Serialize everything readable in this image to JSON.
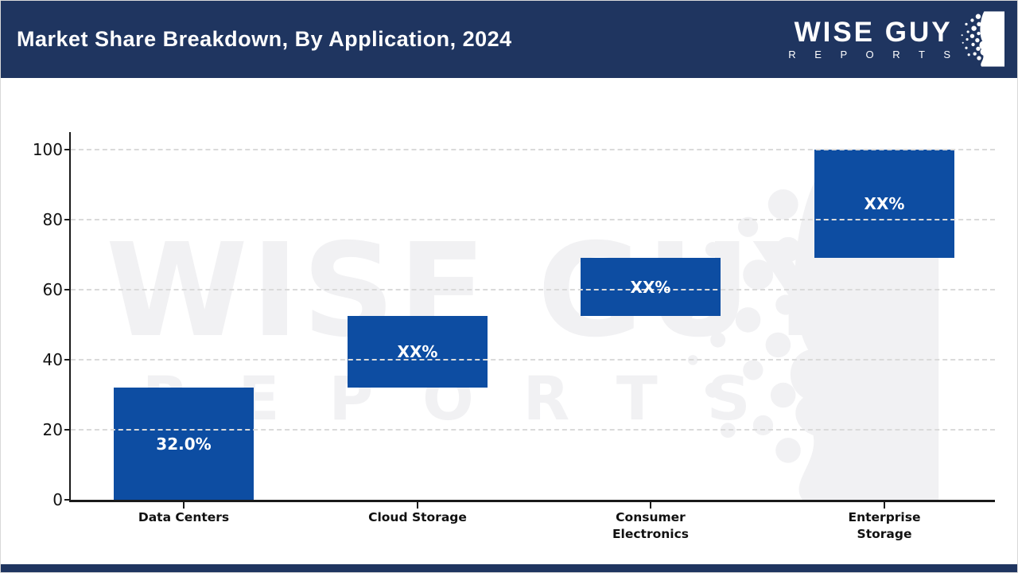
{
  "header": {
    "title": "Market Share Breakdown, By Application, 2024",
    "logo": {
      "line1": "WISE GUY",
      "line2": "R E P O R T S"
    }
  },
  "watermark": {
    "line1": "WISE GUY",
    "line2": "REPORTS"
  },
  "colors": {
    "header_bg": "#1f3560",
    "footer_bg": "#1f3560",
    "bar": "#0d4da2",
    "bar_label": "#ffffff",
    "grid": "#dadada",
    "axis": "#1a1a1a",
    "watermark": "#f1f1f3"
  },
  "chart_data": {
    "type": "bar",
    "subtype": "waterfall",
    "title": "Market Share Breakdown, By Application, 2024",
    "categories": [
      "Data Centers",
      "Cloud Storage",
      "Consumer Electronics",
      "Enterprise Storage"
    ],
    "segments": [
      {
        "category": "Data Centers",
        "start": 0,
        "end": 32,
        "label": "32.0%"
      },
      {
        "category": "Cloud Storage",
        "start": 32,
        "end": 52.5,
        "label": "XX%"
      },
      {
        "category": "Consumer Electronics",
        "start": 52.5,
        "end": 69,
        "label": "XX%"
      },
      {
        "category": "Enterprise Storage",
        "start": 69,
        "end": 100,
        "label": "XX%"
      }
    ],
    "xlabel": "",
    "ylabel": "",
    "ylim": [
      0,
      100
    ],
    "yticks": [
      0,
      20,
      40,
      60,
      80,
      100
    ],
    "grid": "dashed-horizontal",
    "legend": "none"
  }
}
